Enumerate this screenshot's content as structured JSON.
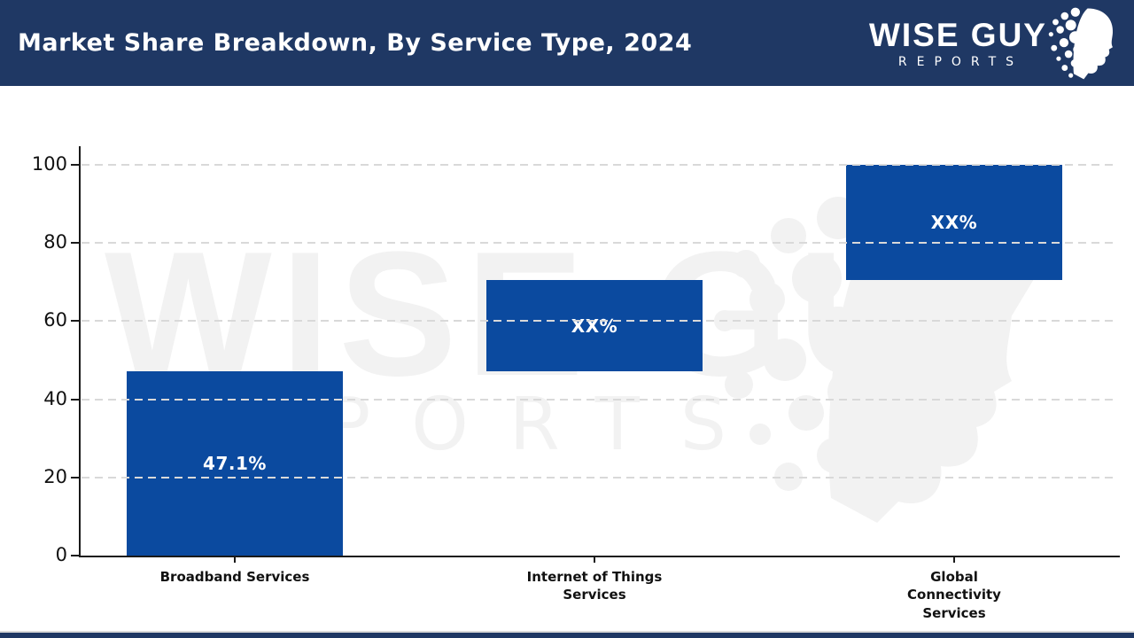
{
  "header": {
    "title": "Market Share Breakdown, By Service Type, 2024",
    "logo": {
      "line1": "WISE GUY",
      "line2": "REPORTS"
    }
  },
  "watermark": {
    "line1": "WISE GUY",
    "line2": "REPORTS"
  },
  "chart_data": {
    "type": "bar",
    "subtype": "floating-segment-waterfall",
    "title": "Market Share Breakdown, By Service Type, 2024",
    "categories": [
      "Broadband Services",
      "Internet of Things Services",
      "Global Connectivity Services"
    ],
    "categories_display": [
      "Broadband Services",
      "Internet of Things\nServices",
      "Global\nConnectivity\nServices"
    ],
    "segments": [
      {
        "category": "Broadband Services",
        "start": 0,
        "end": 47.1,
        "label": "47.1%"
      },
      {
        "category": "Internet of Things Services",
        "start": 47.1,
        "end": 70.5,
        "label": "XX%"
      },
      {
        "category": "Global Connectivity Services",
        "start": 70.5,
        "end": 100,
        "label": "XX%"
      }
    ],
    "ylim": [
      0,
      100
    ],
    "yticks": [
      0,
      20,
      40,
      60,
      80,
      100
    ],
    "xlabel": "",
    "ylabel": "",
    "grid": "horizontal-dashed",
    "legend": "none",
    "bar_color": "#0b4a9f",
    "bar_label_color": "#ffffff",
    "header_bg_color": "#1f3864",
    "gridline_color": "#d9d9d9",
    "axis_color": "#1a1a1a"
  }
}
